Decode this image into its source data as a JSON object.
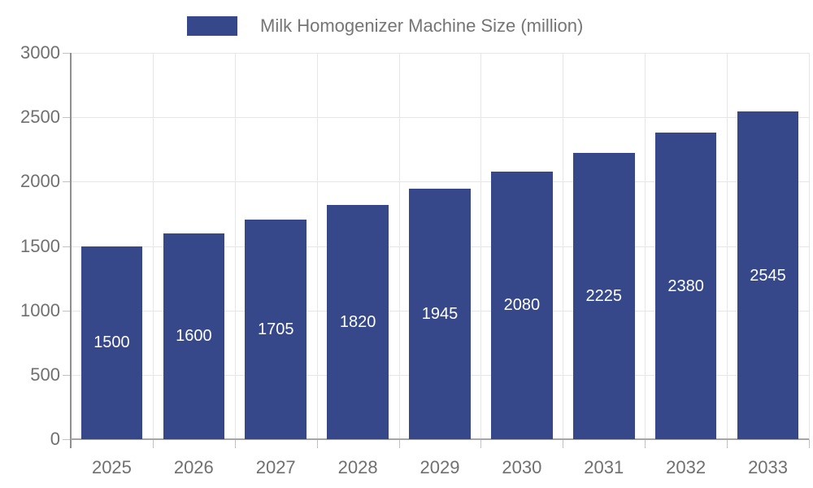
{
  "legend": {
    "label": "Milk Homogenizer Machine Size (million)"
  },
  "chart_data": {
    "type": "bar",
    "title": "Milk Homogenizer Machine Size (million)",
    "categories": [
      "2025",
      "2026",
      "2027",
      "2028",
      "2029",
      "2030",
      "2031",
      "2032",
      "2033"
    ],
    "values": [
      1500,
      1600,
      1705,
      1820,
      1945,
      2080,
      2225,
      2380,
      2545
    ],
    "xlabel": "",
    "ylabel": "",
    "ylim": [
      0,
      3000
    ],
    "ytick_step": 500,
    "ytick_labels": [
      "0",
      "500",
      "1000",
      "1500",
      "2000",
      "2500",
      "3000"
    ],
    "grid": true,
    "legend_position": "top",
    "bar_color": "#36488a",
    "bar_label_color": "#ffffff"
  }
}
